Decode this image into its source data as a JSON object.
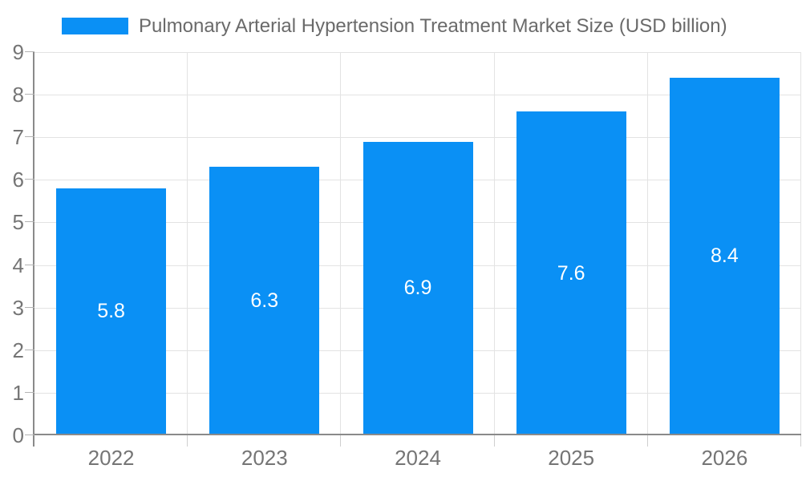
{
  "chart_data": {
    "type": "bar",
    "title": "Pulmonary Arterial Hypertension Treatment Market Size (USD billion)",
    "categories": [
      "2022",
      "2023",
      "2024",
      "2025",
      "2026"
    ],
    "values": [
      5.8,
      6.3,
      6.9,
      7.6,
      8.4
    ],
    "bar_labels": [
      "5.8",
      "6.3",
      "6.9",
      "7.6",
      "8.4"
    ],
    "xlabel": "",
    "ylabel": "",
    "ylim": [
      0,
      9
    ],
    "yticks": [
      0,
      1,
      2,
      3,
      4,
      5,
      6,
      7,
      8,
      9
    ],
    "grid": {
      "horizontal": true,
      "vertical": true
    },
    "legend_position": "top-left",
    "colors": {
      "bar": "#0a90f5",
      "bar_label": "#ffffff",
      "gridline": "#e3e3e3",
      "axis_line": "#8a8a8a",
      "y_tick_mark": "#b3b3b3",
      "x_tick_mark": "#cfcfcf",
      "tick_label_text": "#757575",
      "legend_text": "#6a6a6a",
      "background": "#ffffff"
    }
  }
}
